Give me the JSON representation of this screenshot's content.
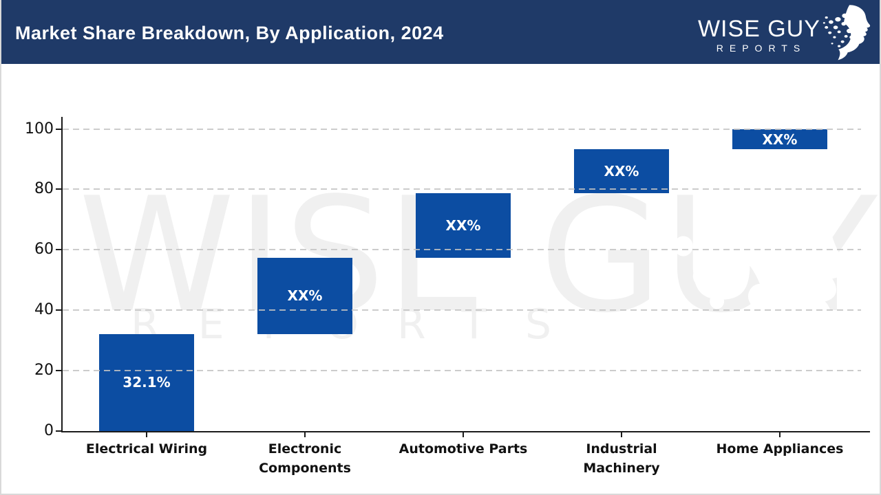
{
  "header": {
    "title": "Market Share Breakdown, By Application, 2024",
    "logo": {
      "line1": "WISE GUY",
      "line2": "REPORTS"
    }
  },
  "watermark": {
    "line1": "WISE GUY",
    "line2": "REPORTS"
  },
  "chart_data": {
    "type": "bar",
    "subtype": "waterfall-floating-bars",
    "title": "Market Share Breakdown, By Application, 2024",
    "categories": [
      "Electrical Wiring",
      "Electronic\nComponents",
      "Automotive Parts",
      "Industrial\nMachinery",
      "Home Appliances"
    ],
    "segments": [
      {
        "category": "Electrical Wiring",
        "start": 0,
        "end": 32.1,
        "label": "32.1%"
      },
      {
        "category": "Electronic Components",
        "start": 32.1,
        "end": 57.4,
        "label": "XX%"
      },
      {
        "category": "Automotive Parts",
        "start": 57.4,
        "end": 78.8,
        "label": "XX%"
      },
      {
        "category": "Industrial Machinery",
        "start": 78.8,
        "end": 93.2,
        "label": "XX%"
      },
      {
        "category": "Home Appliances",
        "start": 93.2,
        "end": 100,
        "label": "XX%"
      }
    ],
    "yticks": [
      0,
      20,
      40,
      60,
      80,
      100
    ],
    "ylim": [
      0,
      104
    ],
    "xlabel": "",
    "ylabel": "",
    "grid": "horizontal dashed, drawn over bars",
    "legend": "none",
    "bar_color": "#0c4da2",
    "bar_label_color": "#ffffff"
  },
  "colors": {
    "header_bg": "#1f3a68",
    "bar": "#0c4da2",
    "axis": "#1a1a1a",
    "gridline": "#c9c9c9",
    "watermark": "#f0f0f0",
    "frame_border": "#d9d9d9"
  }
}
